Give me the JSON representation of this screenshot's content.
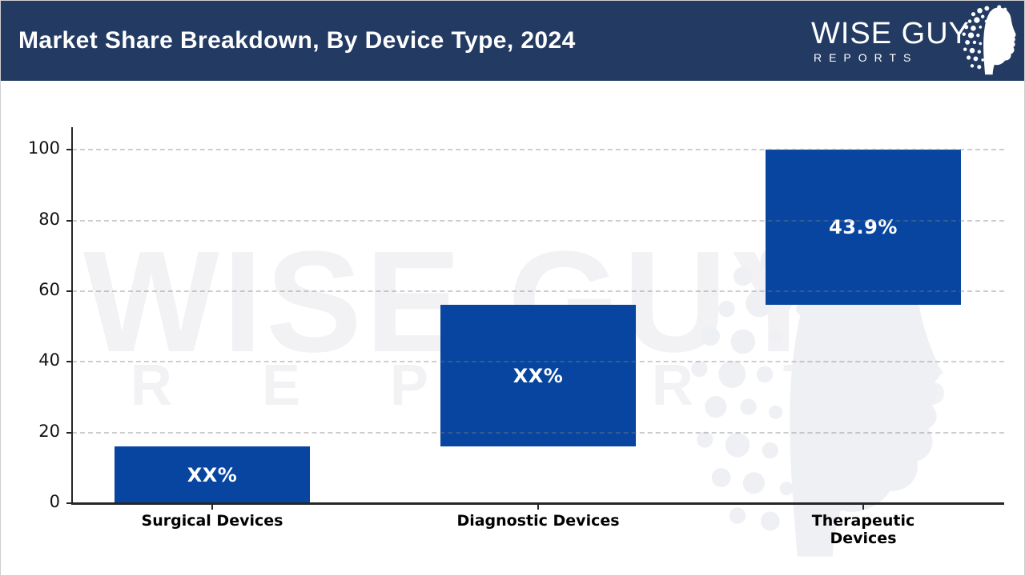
{
  "header": {
    "title": "Market Share Breakdown, By Device Type, 2024",
    "logo": {
      "brand": "WISE GUY",
      "sub": "REPORTS"
    }
  },
  "watermark": {
    "brand": "WISE GUY",
    "sub": "R E P O R T S"
  },
  "chart_data": {
    "type": "bar",
    "variant": "stacked-waterfall-segments",
    "title": "Market Share Breakdown, By Device Type, 2024",
    "categories": [
      "Surgical Devices",
      "Diagnostic Devices",
      "Therapeutic Devices"
    ],
    "x_tick_labels": [
      "Surgical Devices",
      "Diagnostic Devices",
      "Therapeutic\nDevices"
    ],
    "segments": [
      {
        "category": "Surgical Devices",
        "start": 0,
        "end": 16,
        "label": "XX%"
      },
      {
        "category": "Diagnostic Devices",
        "start": 16,
        "end": 56.1,
        "label": "XX%"
      },
      {
        "category": "Therapeutic Devices",
        "start": 56.1,
        "end": 100,
        "label": "43.9%",
        "value": 43.9
      }
    ],
    "ylim": [
      0,
      100
    ],
    "yticks": [
      0,
      20,
      40,
      60,
      80,
      100
    ],
    "grid": "dashed-horizontal",
    "legend": "none",
    "xlabel": "",
    "ylabel": "",
    "bar_color": "#0845A0"
  },
  "colors": {
    "header_bg": "#233A63",
    "bar": "#0845A0",
    "axis": "#262626",
    "background": "#FFFFFF",
    "watermark": "#F2F2F5"
  }
}
